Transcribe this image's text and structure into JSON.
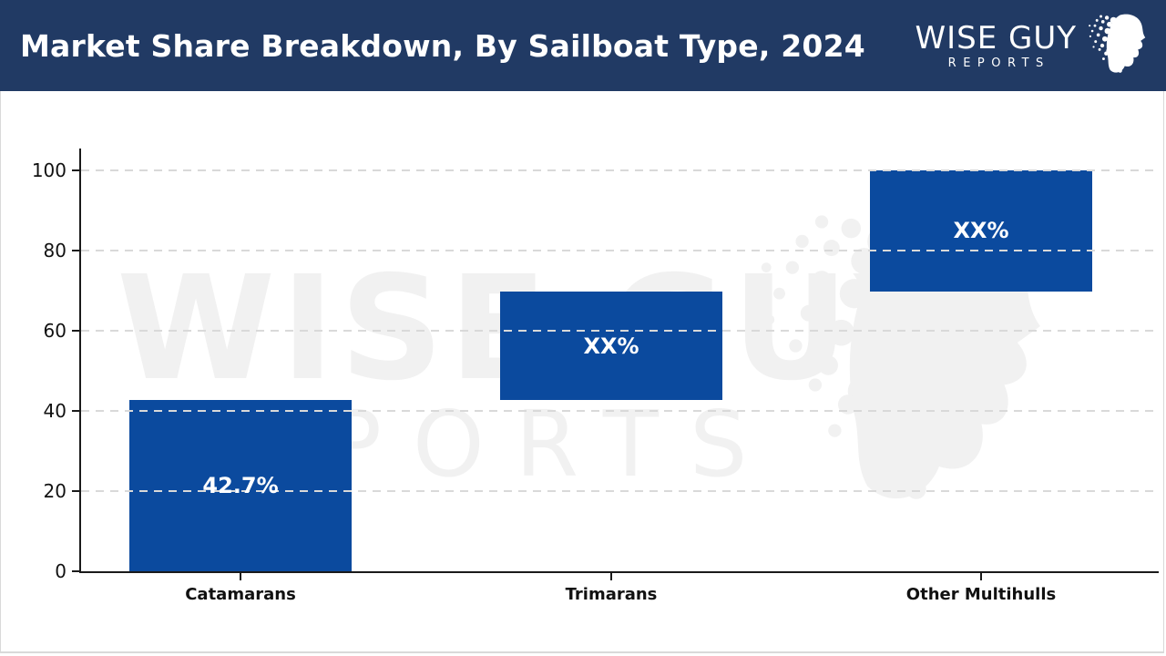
{
  "header": {
    "title": "Market Share Breakdown, By Sailboat Type, 2024",
    "logo": {
      "wordmark": "WISE GUY",
      "sub": "REPORTS",
      "icon": "dotted-face-profile"
    }
  },
  "watermark": {
    "wordmark": "WISE GUY",
    "sub": "REPORTS",
    "icon": "dotted-face-profile"
  },
  "colors": {
    "header_bg": "#213a64",
    "title_text": "#ffffff",
    "bar": "#0b4a9e",
    "bar_label": "#ffffff",
    "grid": "#d9d9d9",
    "axis": "#1a1a1a",
    "watermark": "#f1f1f1"
  },
  "chart_data": {
    "type": "bar",
    "subtype": "floating-waterfall",
    "title": "Market Share Breakdown, By Sailboat Type, 2024",
    "categories": [
      "Catamarans",
      "Trimarans",
      "Other Multihulls"
    ],
    "segments": [
      {
        "category": "Catamarans",
        "base": 0,
        "top": 42.7,
        "label": "42.7%"
      },
      {
        "category": "Trimarans",
        "base": 42.7,
        "top": 69.8,
        "label": "XX%"
      },
      {
        "category": "Other Multihulls",
        "base": 69.8,
        "top": 100,
        "label": "XX%"
      }
    ],
    "xlabel": "",
    "ylabel": "",
    "ylim": [
      0,
      100
    ],
    "yticks": [
      0,
      20,
      40,
      60,
      80,
      100
    ],
    "grid": "horizontal-dashed",
    "legend": "none"
  }
}
